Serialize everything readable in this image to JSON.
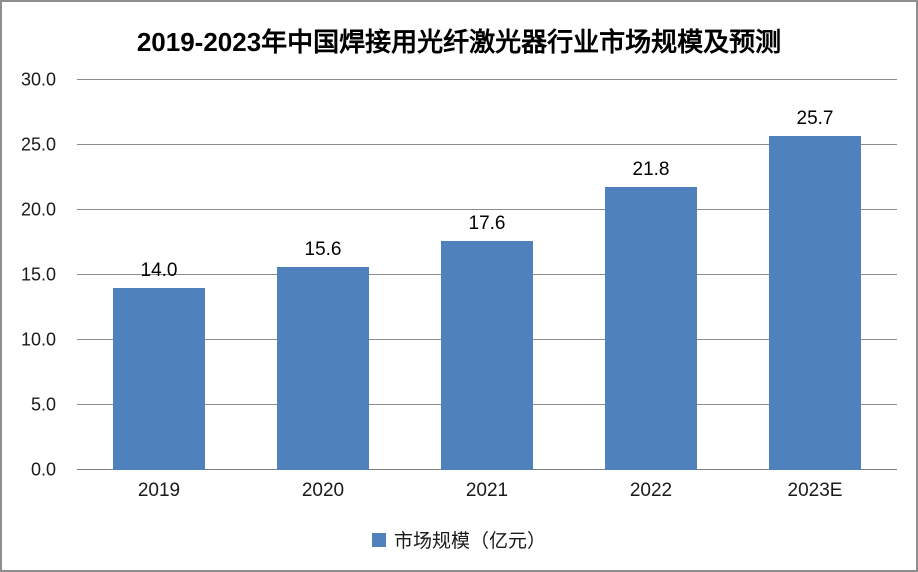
{
  "title": "2019-2023年中国焊接用光纤激光器行业市场规模及预测",
  "colors": {
    "bar": "#4f81bd",
    "gridline": "#8c8c8c",
    "axis": "#7f7f7f",
    "frame": "#8e8e8e",
    "text": "#000000"
  },
  "chart_data": {
    "type": "bar",
    "title": "2019-2023年中国焊接用光纤激光器行业市场规模及预测",
    "categories": [
      "2019",
      "2020",
      "2021",
      "2022",
      "2023E"
    ],
    "values": [
      14.0,
      15.6,
      17.6,
      21.8,
      25.7
    ],
    "value_labels": [
      "14.0",
      "15.6",
      "17.6",
      "21.8",
      "25.7"
    ],
    "xlabel": "",
    "ylabel": "",
    "ylim": [
      0,
      30
    ],
    "ytick_step": 5,
    "yticks": [
      "0.0",
      "5.0",
      "10.0",
      "15.0",
      "20.0",
      "25.0",
      "30.0"
    ],
    "grid": true,
    "legend_position": "bottom",
    "legend": {
      "label": "市场规模（亿元）"
    }
  }
}
